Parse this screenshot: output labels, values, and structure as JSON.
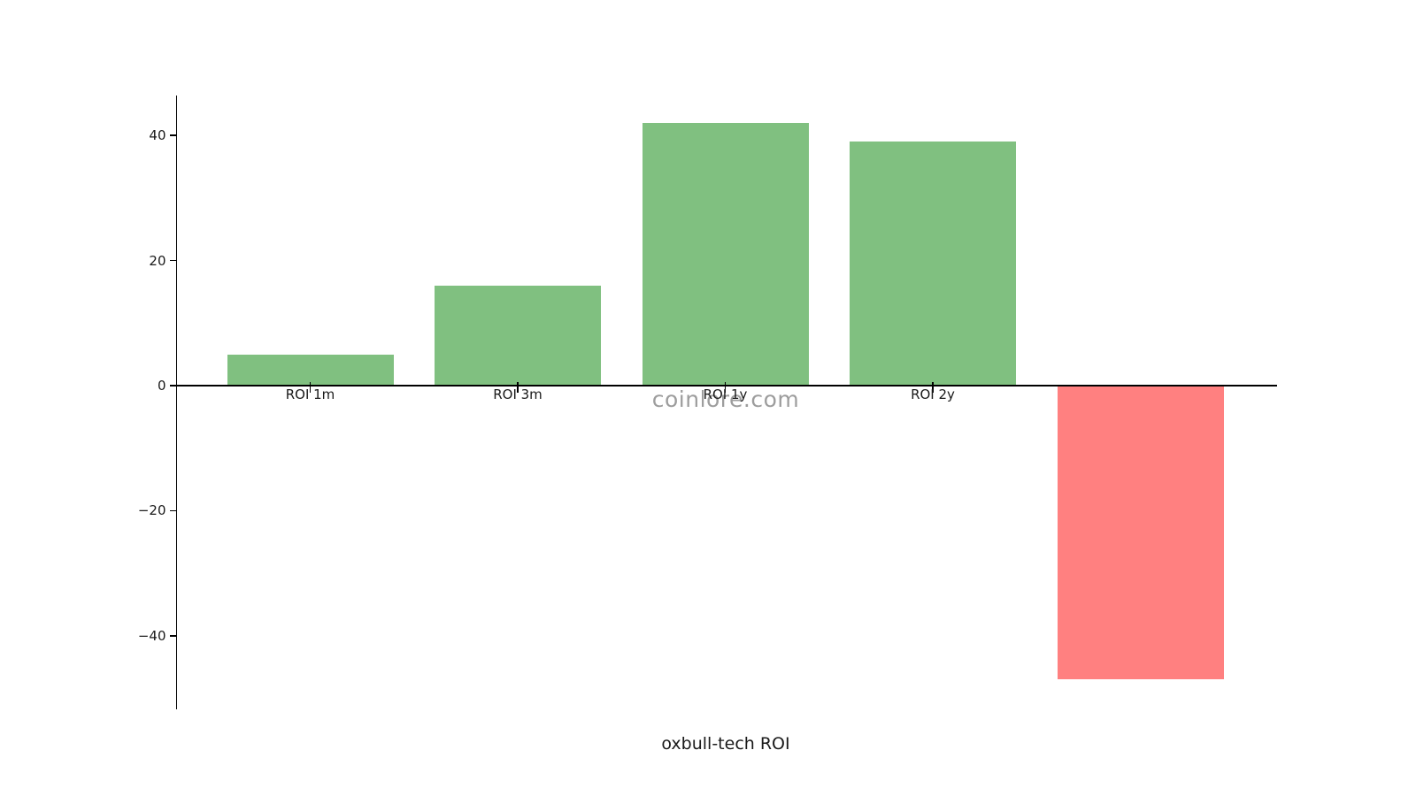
{
  "chart_data": {
    "type": "bar",
    "title": "oxbull-tech ROI",
    "watermark": "coinlore.com",
    "categories": [
      "ROI 1m",
      "ROI 3m",
      "ROI 1y",
      "ROI 2y",
      ""
    ],
    "values": [
      5,
      16,
      42,
      39,
      -47
    ],
    "bar_colors": [
      "#80c080",
      "#80c080",
      "#80c080",
      "#80c080",
      "#ff8080"
    ],
    "positive_color": "#80c080",
    "negative_color": "#ff8080",
    "xlabel": "",
    "ylabel": "",
    "grid": false,
    "legend": false,
    "y_axis": {
      "ticks": [
        40,
        20,
        0,
        -20,
        -40
      ],
      "tick_labels": [
        "40",
        "20",
        "0",
        "−20",
        "−40"
      ],
      "ylim": [
        -51.5,
        46.5
      ]
    },
    "axis_color": "#000000",
    "text_color": "#1a1a1a",
    "watermark_color": "#8c8c8c",
    "background_color": "#ffffff"
  }
}
